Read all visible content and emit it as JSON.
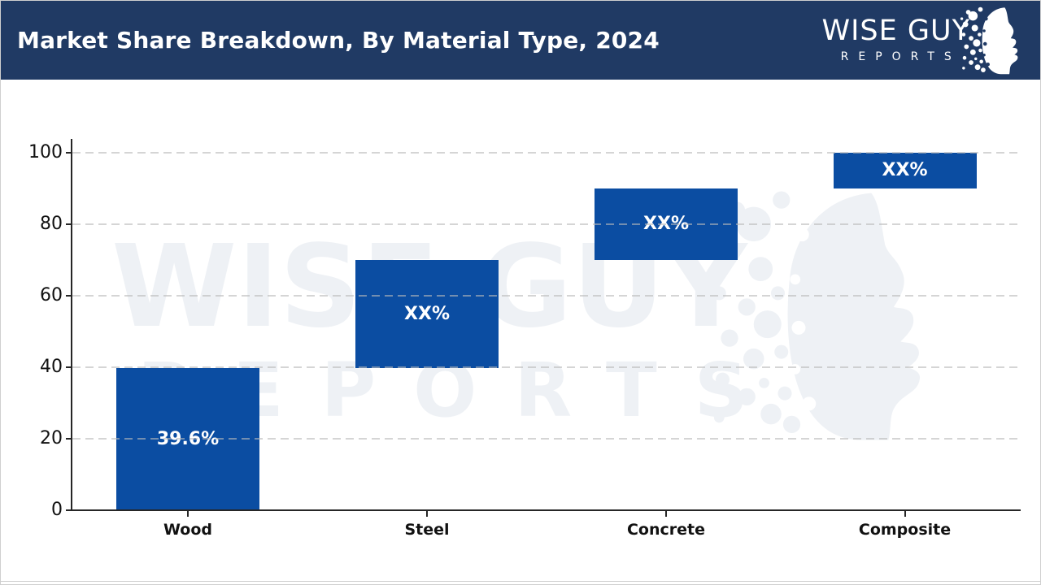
{
  "header": {
    "title": "Market Share Breakdown, By Material Type, 2024",
    "logo": {
      "line1": "WISE GUY",
      "line2": "REPORTS"
    }
  },
  "watermark": {
    "line1": "WISE GUY",
    "line2": "REPORTS"
  },
  "colors": {
    "header_bg": "#203a64",
    "bar": "#0b4da2",
    "bar_label": "#ffffff",
    "watermark": "#eef1f5",
    "gridline": "#d9d9d9",
    "axis": "#262626"
  },
  "chart_data": {
    "type": "bar",
    "subtype": "waterfall",
    "title": "Market Share Breakdown, By Material Type, 2024",
    "categories": [
      "Wood",
      "Steel",
      "Concrete",
      "Composite"
    ],
    "segments": [
      {
        "category": "Wood",
        "start": 0,
        "end": 39.6,
        "label": "39.6%"
      },
      {
        "category": "Steel",
        "start": 39.6,
        "end": 70,
        "label": "XX%"
      },
      {
        "category": "Concrete",
        "start": 70,
        "end": 90,
        "label": "XX%"
      },
      {
        "category": "Composite",
        "start": 90,
        "end": 100,
        "label": "XX%"
      }
    ],
    "y_ticks": [
      0,
      20,
      40,
      60,
      80,
      100
    ],
    "ylim": [
      0,
      104
    ],
    "xlabel": "",
    "ylabel": "",
    "grid": "horizontal-dashed",
    "legend": "none"
  }
}
